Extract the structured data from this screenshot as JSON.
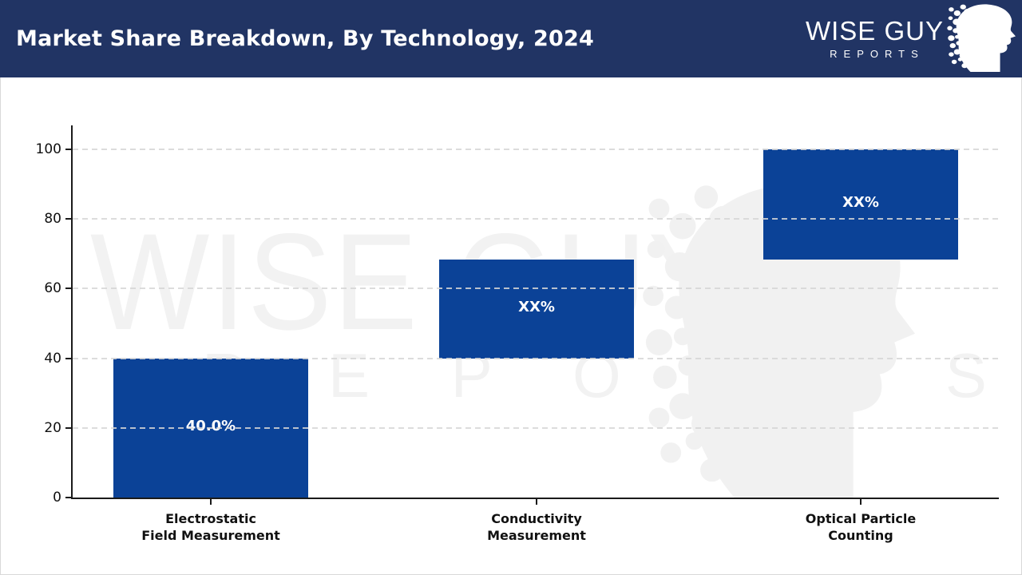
{
  "header": {
    "title": "Market Share Breakdown, By Technology, 2024",
    "bg_color": "#213464",
    "logo": {
      "line1": "WISE GUY",
      "line2": "REPORTS"
    }
  },
  "watermark": {
    "line1": "WISE GUY",
    "line2": "R E P O R T S"
  },
  "chart_data": {
    "type": "bar",
    "variant": "floating-waterfall",
    "title": "Market Share Breakdown, By Technology, 2024",
    "categories": [
      [
        "Electrostatic",
        "Field Measurement"
      ],
      [
        "Conductivity",
        "Measurement"
      ],
      [
        "Optical Particle",
        "Counting"
      ]
    ],
    "bars": [
      {
        "start": 0,
        "end": 40,
        "label": "40.0%"
      },
      {
        "start": 40,
        "end": 68.4,
        "label": "XX%"
      },
      {
        "start": 68.4,
        "end": 100,
        "label": "XX%"
      }
    ],
    "yticks": [
      0,
      20,
      40,
      60,
      80,
      100
    ],
    "ylim": [
      0,
      105
    ],
    "xlabel": "",
    "ylabel": "",
    "bar_color": "#0b4297",
    "grid": "horizontal-dashed",
    "grid_color": "#d9d9d9",
    "legend": "none"
  }
}
